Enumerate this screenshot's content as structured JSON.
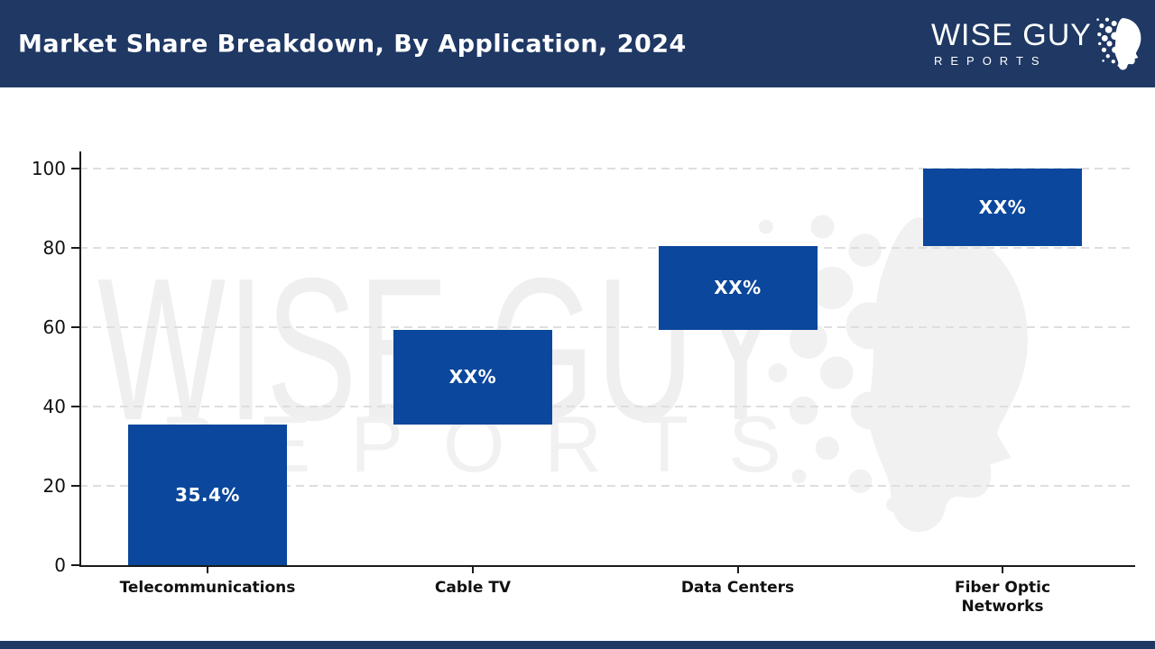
{
  "header": {
    "title": "Market Share Breakdown, By Application, 2024",
    "logo": {
      "name": "WISE GUY",
      "subtitle": "REPORTS"
    }
  },
  "watermark": {
    "name": "WISE GUY",
    "subtitle": "REPORTS"
  },
  "chart_data": {
    "type": "bar",
    "subtype": "waterfall-breakdown",
    "title": "Market Share Breakdown, By Application, 2024",
    "categories": [
      "Telecommunications",
      "Cable TV",
      "Data Centers",
      "Fiber Optic\nNetworks"
    ],
    "segments": [
      {
        "category": "Telecommunications",
        "start": 0,
        "end": 35.4,
        "label": "35.4%"
      },
      {
        "category": "Cable TV",
        "start": 35.4,
        "end": 59.4,
        "label": "XX%"
      },
      {
        "category": "Data Centers",
        "start": 59.4,
        "end": 80.4,
        "label": "XX%"
      },
      {
        "category": "Fiber Optic Networks",
        "start": 80.4,
        "end": 100,
        "label": "XX%"
      }
    ],
    "yticks": [
      0,
      20,
      40,
      60,
      80,
      100
    ],
    "ylim": [
      0,
      100
    ],
    "xlabel": "",
    "ylabel": "",
    "grid": "horizontal-dashed",
    "legend": "none",
    "bar_color": "#0b479c",
    "bar_label_color": "#ffffff",
    "axis_color": "#1a1a1a",
    "grid_color": "#dedede",
    "brand_color": "#1f3864"
  }
}
